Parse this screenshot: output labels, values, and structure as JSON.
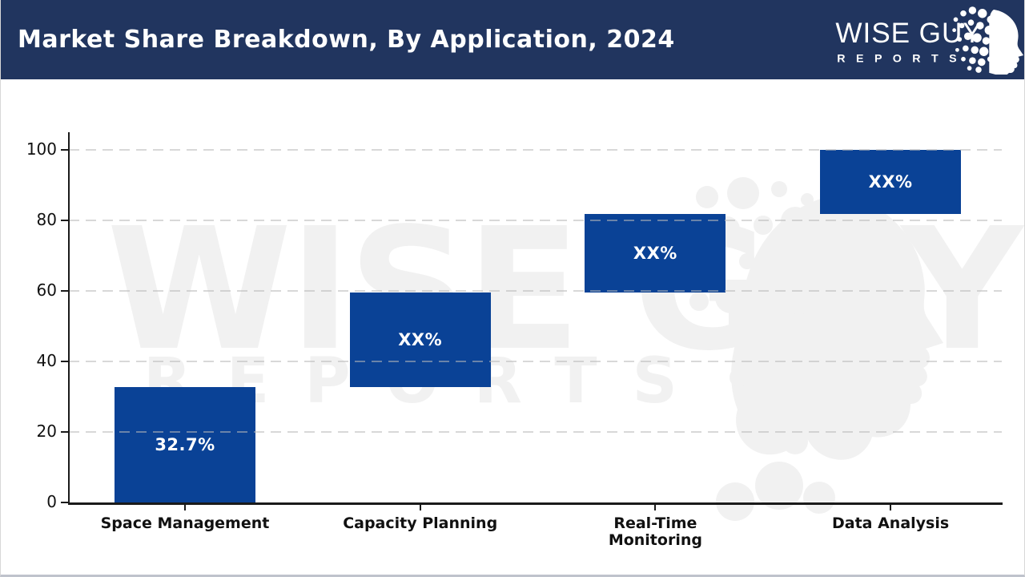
{
  "header": {
    "title": "Market Share Breakdown, By Application, 2024"
  },
  "logo": {
    "wordmark": "WISE GUY",
    "sub": "R E P O R T S"
  },
  "watermark": {
    "wordmark": "WISE GUY",
    "sub": "REPORTS"
  },
  "chart_data": {
    "type": "bar",
    "subtype": "floating-waterfall",
    "title": "Market Share Breakdown, By Application, 2024",
    "categories": [
      "Space Management",
      "Capacity Planning",
      "Real-Time\nMonitoring",
      "Data Analysis"
    ],
    "segments": [
      {
        "category": "Space Management",
        "label": "32.7%",
        "start": 0,
        "end": 32.7
      },
      {
        "category": "Capacity Planning",
        "label": "XX%",
        "start": 32.7,
        "end": 59.5
      },
      {
        "category": "Real-Time Monitoring",
        "label": "XX%",
        "start": 59.5,
        "end": 81.8
      },
      {
        "category": "Data Analysis",
        "label": "XX%",
        "start": 81.8,
        "end": 100
      }
    ],
    "yticks": [
      0,
      20,
      40,
      60,
      80,
      100
    ],
    "ylim": [
      0,
      105
    ],
    "xlabel": "",
    "ylabel": "",
    "grid": "dashed-horizontal",
    "legend": "none",
    "bar_color": "#0a4296",
    "bar_label_color": "#ffffff",
    "axis_color": "#1a1a1a",
    "header_color": "#21355f",
    "watermark_color": "#f1f1f1"
  }
}
